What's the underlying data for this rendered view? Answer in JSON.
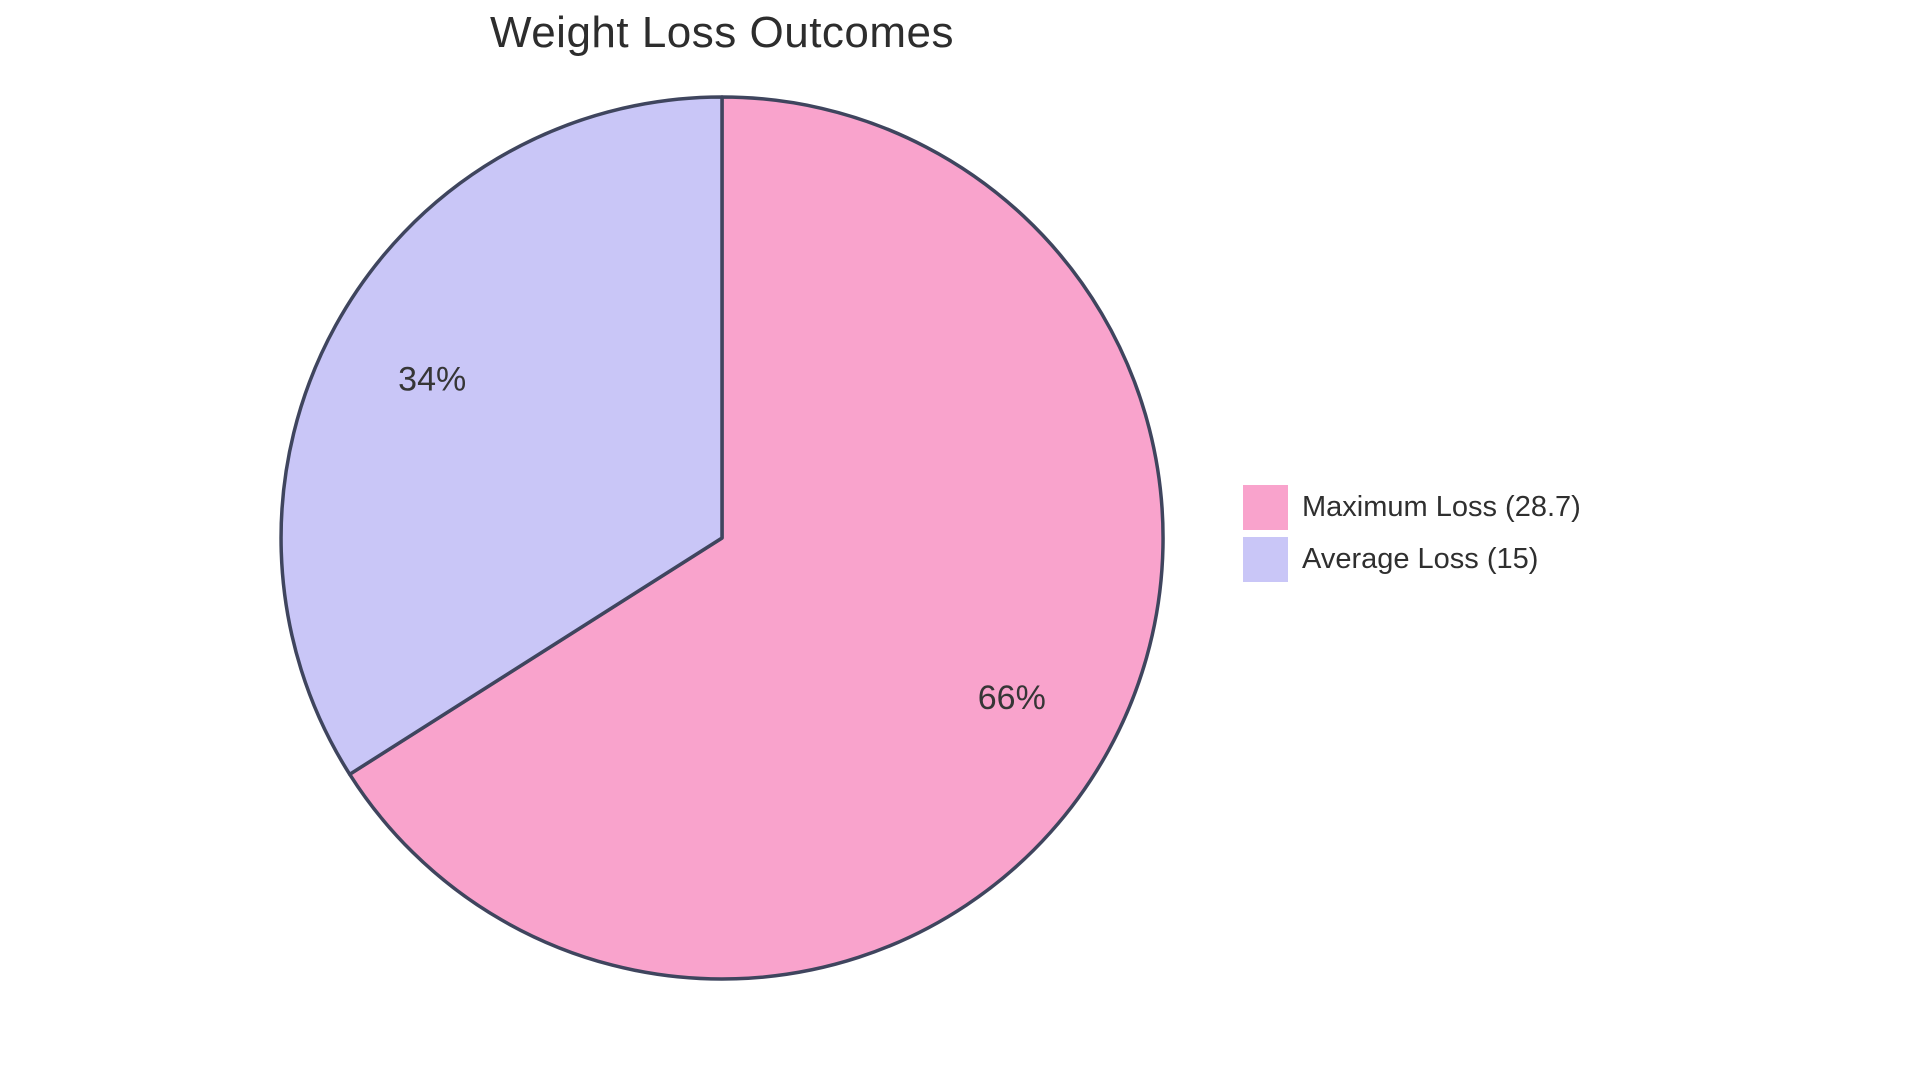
{
  "page": {
    "background_color": "#ffffff"
  },
  "chart_data": {
    "type": "pie",
    "title": "Weight Loss Outcomes",
    "start_angle_deg": 0,
    "direction": "clockwise",
    "legend_position": "right",
    "stroke_color": "#3F455E",
    "stroke_width": 3.5,
    "text_color": "#363636",
    "slices": [
      {
        "name": "Maximum Loss",
        "value": 28.7,
        "percent": 66,
        "percent_label": "66%",
        "legend_label": "Maximum Loss (28.7)",
        "color": "#F9A3CC"
      },
      {
        "name": "Average Loss",
        "value": 15,
        "percent": 34,
        "percent_label": "34%",
        "legend_label": "Average Loss (15)",
        "color": "#C9C6F7"
      }
    ]
  }
}
